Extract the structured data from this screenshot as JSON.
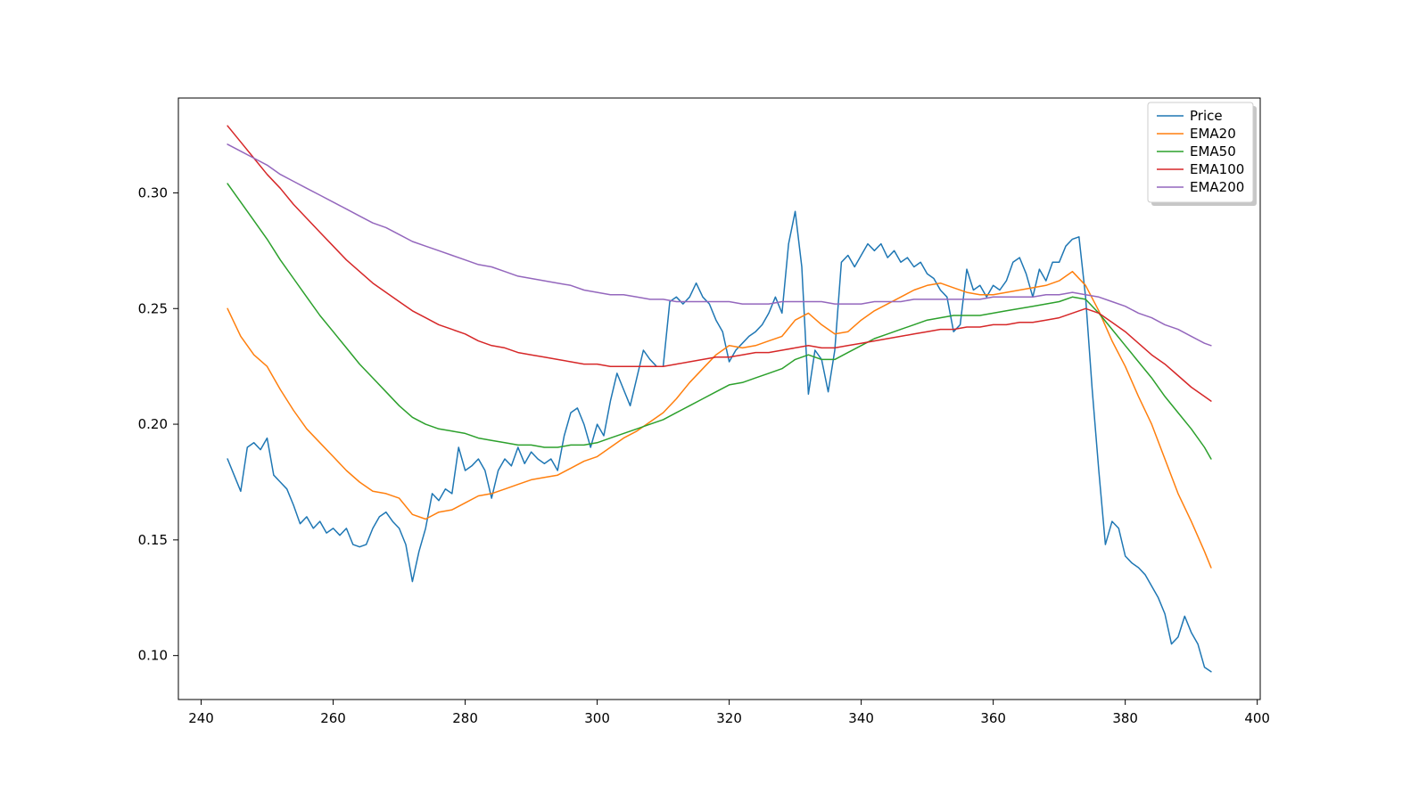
{
  "figure": {
    "background": "#ffffff"
  },
  "chart_data": {
    "type": "line",
    "title": "",
    "xlabel": "",
    "ylabel": "",
    "grid": false,
    "xlim": [
      236.55,
      400.45
    ],
    "ylim": [
      0.081,
      0.341
    ],
    "x_ticks": [
      240,
      260,
      280,
      300,
      320,
      340,
      360,
      380,
      400
    ],
    "x_tick_labels": [
      "240",
      "260",
      "280",
      "300",
      "320",
      "340",
      "360",
      "380",
      "400"
    ],
    "y_ticks": [
      0.1,
      0.15,
      0.2,
      0.25,
      0.3
    ],
    "y_tick_labels": [
      "0.10",
      "0.15",
      "0.20",
      "0.25",
      "0.30"
    ],
    "legend": {
      "position": "upper right",
      "entries": [
        "Price",
        "EMA20",
        "EMA50",
        "EMA100",
        "EMA200"
      ]
    },
    "series": [
      {
        "name": "Price",
        "color": "#1f77b4",
        "x": [
          244,
          245,
          246,
          247,
          248,
          249,
          250,
          251,
          252,
          253,
          254,
          255,
          256,
          257,
          258,
          259,
          260,
          261,
          262,
          263,
          264,
          265,
          266,
          267,
          268,
          269,
          270,
          271,
          272,
          273,
          274,
          275,
          276,
          277,
          278,
          279,
          280,
          281,
          282,
          283,
          284,
          285,
          286,
          287,
          288,
          289,
          290,
          291,
          292,
          293,
          294,
          295,
          296,
          297,
          298,
          299,
          300,
          301,
          302,
          303,
          304,
          305,
          306,
          307,
          308,
          309,
          310,
          311,
          312,
          313,
          314,
          315,
          316,
          317,
          318,
          319,
          320,
          321,
          322,
          323,
          324,
          325,
          326,
          327,
          328,
          329,
          330,
          331,
          332,
          333,
          334,
          335,
          336,
          337,
          338,
          339,
          340,
          341,
          342,
          343,
          344,
          345,
          346,
          347,
          348,
          349,
          350,
          351,
          352,
          353,
          354,
          355,
          356,
          357,
          358,
          359,
          360,
          361,
          362,
          363,
          364,
          365,
          366,
          367,
          368,
          369,
          370,
          371,
          372,
          373,
          374,
          375,
          376,
          377,
          378,
          379,
          380,
          381,
          382,
          383,
          384,
          385,
          386,
          387,
          388,
          389,
          390,
          391,
          392,
          393
        ],
        "y": [
          0.185,
          0.178,
          0.171,
          0.19,
          0.192,
          0.189,
          0.194,
          0.178,
          0.175,
          0.172,
          0.165,
          0.157,
          0.16,
          0.155,
          0.158,
          0.153,
          0.155,
          0.152,
          0.155,
          0.148,
          0.147,
          0.148,
          0.155,
          0.16,
          0.162,
          0.158,
          0.155,
          0.148,
          0.132,
          0.145,
          0.155,
          0.17,
          0.167,
          0.172,
          0.17,
          0.19,
          0.18,
          0.182,
          0.185,
          0.18,
          0.168,
          0.18,
          0.185,
          0.182,
          0.19,
          0.183,
          0.188,
          0.185,
          0.183,
          0.185,
          0.18,
          0.195,
          0.205,
          0.207,
          0.2,
          0.19,
          0.2,
          0.195,
          0.21,
          0.222,
          0.215,
          0.208,
          0.22,
          0.232,
          0.228,
          0.225,
          0.225,
          0.253,
          0.255,
          0.252,
          0.255,
          0.261,
          0.255,
          0.252,
          0.245,
          0.24,
          0.227,
          0.232,
          0.235,
          0.238,
          0.24,
          0.243,
          0.248,
          0.255,
          0.248,
          0.278,
          0.292,
          0.268,
          0.213,
          0.232,
          0.228,
          0.214,
          0.232,
          0.27,
          0.273,
          0.268,
          0.273,
          0.278,
          0.275,
          0.278,
          0.272,
          0.275,
          0.27,
          0.272,
          0.268,
          0.27,
          0.265,
          0.263,
          0.258,
          0.255,
          0.24,
          0.243,
          0.267,
          0.258,
          0.26,
          0.255,
          0.26,
          0.258,
          0.262,
          0.27,
          0.272,
          0.265,
          0.255,
          0.267,
          0.262,
          0.27,
          0.27,
          0.277,
          0.28,
          0.281,
          0.255,
          0.215,
          0.18,
          0.148,
          0.158,
          0.155,
          0.143,
          0.14,
          0.138,
          0.135,
          0.13,
          0.125,
          0.118,
          0.105,
          0.108,
          0.117,
          0.11,
          0.105,
          0.095,
          0.093
        ]
      },
      {
        "name": "EMA20",
        "color": "#ff7f0e",
        "x": [
          244,
          246,
          248,
          250,
          252,
          254,
          256,
          258,
          260,
          262,
          264,
          266,
          268,
          270,
          272,
          274,
          276,
          278,
          280,
          282,
          284,
          286,
          288,
          290,
          292,
          294,
          296,
          298,
          300,
          302,
          304,
          306,
          308,
          310,
          312,
          314,
          316,
          318,
          320,
          322,
          324,
          326,
          328,
          330,
          332,
          334,
          336,
          338,
          340,
          342,
          344,
          346,
          348,
          350,
          352,
          354,
          356,
          358,
          360,
          362,
          364,
          366,
          368,
          370,
          372,
          374,
          376,
          378,
          380,
          382,
          384,
          386,
          388,
          390,
          392,
          393
        ],
        "y": [
          0.25,
          0.238,
          0.23,
          0.225,
          0.215,
          0.206,
          0.198,
          0.192,
          0.186,
          0.18,
          0.175,
          0.171,
          0.17,
          0.168,
          0.161,
          0.159,
          0.162,
          0.163,
          0.166,
          0.169,
          0.17,
          0.172,
          0.174,
          0.176,
          0.177,
          0.178,
          0.181,
          0.184,
          0.186,
          0.19,
          0.194,
          0.197,
          0.201,
          0.205,
          0.211,
          0.218,
          0.224,
          0.23,
          0.234,
          0.233,
          0.234,
          0.236,
          0.238,
          0.245,
          0.248,
          0.243,
          0.239,
          0.24,
          0.245,
          0.249,
          0.252,
          0.255,
          0.258,
          0.26,
          0.261,
          0.259,
          0.257,
          0.256,
          0.256,
          0.257,
          0.258,
          0.259,
          0.26,
          0.262,
          0.266,
          0.26,
          0.249,
          0.236,
          0.225,
          0.212,
          0.2,
          0.185,
          0.17,
          0.158,
          0.145,
          0.138
        ]
      },
      {
        "name": "EMA50",
        "color": "#2ca02c",
        "x": [
          244,
          246,
          248,
          250,
          252,
          254,
          256,
          258,
          260,
          262,
          264,
          266,
          268,
          270,
          272,
          274,
          276,
          278,
          280,
          282,
          284,
          286,
          288,
          290,
          292,
          294,
          296,
          298,
          300,
          302,
          304,
          306,
          308,
          310,
          312,
          314,
          316,
          318,
          320,
          322,
          324,
          326,
          328,
          330,
          332,
          334,
          336,
          338,
          340,
          342,
          344,
          346,
          348,
          350,
          352,
          354,
          356,
          358,
          360,
          362,
          364,
          366,
          368,
          370,
          372,
          374,
          376,
          378,
          380,
          382,
          384,
          386,
          388,
          390,
          392,
          393
        ],
        "y": [
          0.304,
          0.296,
          0.288,
          0.28,
          0.271,
          0.263,
          0.255,
          0.247,
          0.24,
          0.233,
          0.226,
          0.22,
          0.214,
          0.208,
          0.203,
          0.2,
          0.198,
          0.197,
          0.196,
          0.194,
          0.193,
          0.192,
          0.191,
          0.191,
          0.19,
          0.19,
          0.191,
          0.191,
          0.192,
          0.194,
          0.196,
          0.198,
          0.2,
          0.202,
          0.205,
          0.208,
          0.211,
          0.214,
          0.217,
          0.218,
          0.22,
          0.222,
          0.224,
          0.228,
          0.23,
          0.228,
          0.228,
          0.231,
          0.234,
          0.237,
          0.239,
          0.241,
          0.243,
          0.245,
          0.246,
          0.247,
          0.247,
          0.247,
          0.248,
          0.249,
          0.25,
          0.251,
          0.252,
          0.253,
          0.255,
          0.254,
          0.248,
          0.241,
          0.234,
          0.227,
          0.22,
          0.212,
          0.205,
          0.198,
          0.19,
          0.185
        ]
      },
      {
        "name": "EMA100",
        "color": "#d62728",
        "x": [
          244,
          246,
          248,
          250,
          252,
          254,
          256,
          258,
          260,
          262,
          264,
          266,
          268,
          270,
          272,
          274,
          276,
          278,
          280,
          282,
          284,
          286,
          288,
          290,
          292,
          294,
          296,
          298,
          300,
          302,
          304,
          306,
          308,
          310,
          312,
          314,
          316,
          318,
          320,
          322,
          324,
          326,
          328,
          330,
          332,
          334,
          336,
          338,
          340,
          342,
          344,
          346,
          348,
          350,
          352,
          354,
          356,
          358,
          360,
          362,
          364,
          366,
          368,
          370,
          372,
          374,
          376,
          378,
          380,
          382,
          384,
          386,
          388,
          390,
          392,
          393
        ],
        "y": [
          0.329,
          0.322,
          0.315,
          0.308,
          0.302,
          0.295,
          0.289,
          0.283,
          0.277,
          0.271,
          0.266,
          0.261,
          0.257,
          0.253,
          0.249,
          0.246,
          0.243,
          0.241,
          0.239,
          0.236,
          0.234,
          0.233,
          0.231,
          0.23,
          0.229,
          0.228,
          0.227,
          0.226,
          0.226,
          0.225,
          0.225,
          0.225,
          0.225,
          0.225,
          0.226,
          0.227,
          0.228,
          0.229,
          0.229,
          0.23,
          0.231,
          0.231,
          0.232,
          0.233,
          0.234,
          0.233,
          0.233,
          0.234,
          0.235,
          0.236,
          0.237,
          0.238,
          0.239,
          0.24,
          0.241,
          0.241,
          0.242,
          0.242,
          0.243,
          0.243,
          0.244,
          0.244,
          0.245,
          0.246,
          0.248,
          0.25,
          0.248,
          0.244,
          0.24,
          0.235,
          0.23,
          0.226,
          0.221,
          0.216,
          0.212,
          0.21
        ]
      },
      {
        "name": "EMA200",
        "color": "#9467bd",
        "x": [
          244,
          246,
          248,
          250,
          252,
          254,
          256,
          258,
          260,
          262,
          264,
          266,
          268,
          270,
          272,
          274,
          276,
          278,
          280,
          282,
          284,
          286,
          288,
          290,
          292,
          294,
          296,
          298,
          300,
          302,
          304,
          306,
          308,
          310,
          312,
          314,
          316,
          318,
          320,
          322,
          324,
          326,
          328,
          330,
          332,
          334,
          336,
          338,
          340,
          342,
          344,
          346,
          348,
          350,
          352,
          354,
          356,
          358,
          360,
          362,
          364,
          366,
          368,
          370,
          372,
          374,
          376,
          378,
          380,
          382,
          384,
          386,
          388,
          390,
          392,
          393
        ],
        "y": [
          0.321,
          0.318,
          0.315,
          0.312,
          0.308,
          0.305,
          0.302,
          0.299,
          0.296,
          0.293,
          0.29,
          0.287,
          0.285,
          0.282,
          0.279,
          0.277,
          0.275,
          0.273,
          0.271,
          0.269,
          0.268,
          0.266,
          0.264,
          0.263,
          0.262,
          0.261,
          0.26,
          0.258,
          0.257,
          0.256,
          0.256,
          0.255,
          0.254,
          0.254,
          0.253,
          0.253,
          0.253,
          0.253,
          0.253,
          0.252,
          0.252,
          0.252,
          0.253,
          0.253,
          0.253,
          0.253,
          0.252,
          0.252,
          0.252,
          0.253,
          0.253,
          0.253,
          0.254,
          0.254,
          0.254,
          0.254,
          0.254,
          0.254,
          0.255,
          0.255,
          0.255,
          0.255,
          0.256,
          0.256,
          0.257,
          0.256,
          0.255,
          0.253,
          0.251,
          0.248,
          0.246,
          0.243,
          0.241,
          0.238,
          0.235,
          0.234
        ]
      }
    ],
    "style": {
      "axis_color": "#000000",
      "tick_label_color": "#000000",
      "legend_edge_color": "#cccccc",
      "legend_face_color": "#ffffff",
      "legend_shadow_color": "#999999"
    }
  }
}
